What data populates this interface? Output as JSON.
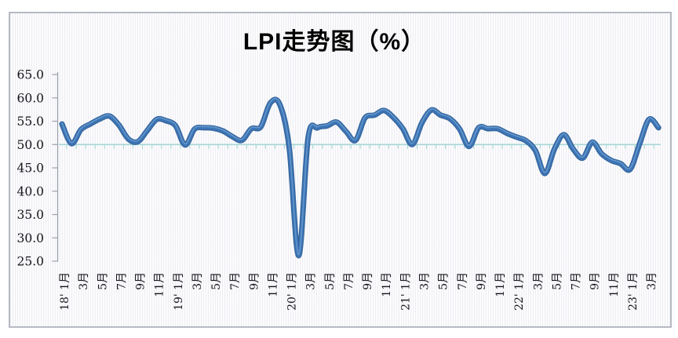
{
  "chart_data": {
    "type": "line",
    "title": "LPI走势图（%）",
    "unit": "%",
    "legend": "none",
    "grid": "off",
    "ylim": [
      25.0,
      65.0
    ],
    "ytick_step": 5.0,
    "ytick_labels": [
      "65.0",
      "60.0",
      "55.0",
      "50.0",
      "45.0",
      "40.0",
      "35.0",
      "30.0",
      "25.0"
    ],
    "reference_line": 50.0,
    "x": [
      "2018-01",
      "2018-02",
      "2018-03",
      "2018-04",
      "2018-05",
      "2018-06",
      "2018-07",
      "2018-08",
      "2018-09",
      "2018-10",
      "2018-11",
      "2018-12",
      "2019-01",
      "2019-02",
      "2019-03",
      "2019-04",
      "2019-05",
      "2019-06",
      "2019-07",
      "2019-08",
      "2019-09",
      "2019-10",
      "2019-11",
      "2019-12",
      "2020-01",
      "2020-02",
      "2020-03",
      "2020-04",
      "2020-05",
      "2020-06",
      "2020-07",
      "2020-08",
      "2020-09",
      "2020-10",
      "2020-11",
      "2020-12",
      "2021-01",
      "2021-02",
      "2021-03",
      "2021-04",
      "2021-05",
      "2021-06",
      "2021-07",
      "2021-08",
      "2021-09",
      "2021-10",
      "2021-11",
      "2021-12",
      "2022-01",
      "2022-02",
      "2022-03",
      "2022-04",
      "2022-05",
      "2022-06",
      "2022-07",
      "2022-08",
      "2022-09",
      "2022-10",
      "2022-11",
      "2022-12",
      "2023-01",
      "2023-02",
      "2023-03",
      "2023-04"
    ],
    "x_tick_every": 2,
    "x_tick_labels": [
      "18' 1月",
      "3月",
      "5月",
      "7月",
      "9月",
      "11月",
      "19' 1月",
      "3月",
      "5月",
      "7月",
      "9月",
      "11月",
      "20' 1月",
      "3月",
      "5月",
      "7月",
      "9月",
      "11月",
      "21' 1月",
      "3月",
      "5月",
      "7月",
      "9月",
      "11月",
      "22' 1月",
      "3月",
      "5月",
      "7月",
      "9月",
      "11月",
      "23' 1月",
      "3月"
    ],
    "series": [
      {
        "name": "LPI",
        "values": [
          54.4,
          50.2,
          53.2,
          54.4,
          55.5,
          56.1,
          54.2,
          51.2,
          50.6,
          53.0,
          55.4,
          55.1,
          54.0,
          49.9,
          53.3,
          53.6,
          53.5,
          52.9,
          51.7,
          50.9,
          53.4,
          53.8,
          58.9,
          58.6,
          49.3,
          26.2,
          51.5,
          53.6,
          54.0,
          54.8,
          52.8,
          50.9,
          55.7,
          56.3,
          57.3,
          55.8,
          53.4,
          50.0,
          54.6,
          57.4,
          56.3,
          55.5,
          53.3,
          49.6,
          53.6,
          53.4,
          53.4,
          52.4,
          51.6,
          50.8,
          48.7,
          43.8,
          49.0,
          52.1,
          49.0,
          47.1,
          50.5,
          48.0,
          46.6,
          45.9,
          44.7,
          50.1,
          55.4,
          53.6
        ]
      }
    ],
    "colors": {
      "line": "#3c74b4",
      "line_dark": "#35659c",
      "line_light": "#6d9fd2",
      "reference": "#a6d6d6",
      "axis": "#9aa0ab",
      "text": "#15151c",
      "frame_border": "#b7bac3"
    }
  }
}
